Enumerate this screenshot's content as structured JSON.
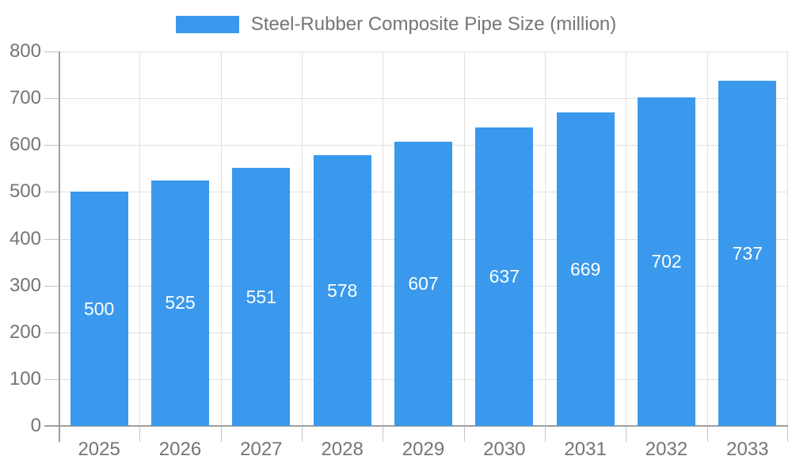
{
  "legend": {
    "label": "Steel-Rubber Composite Pipe Size (million)"
  },
  "chart_data": {
    "type": "bar",
    "title": "Steel-Rubber Composite Pipe Size (million)",
    "xlabel": "",
    "ylabel": "",
    "categories": [
      "2025",
      "2026",
      "2027",
      "2028",
      "2029",
      "2030",
      "2031",
      "2032",
      "2033"
    ],
    "values": [
      500,
      525,
      551,
      578,
      607,
      637,
      669,
      702,
      737
    ],
    "ylim": [
      0,
      800
    ],
    "ytick_step": 100,
    "ytick_labels": [
      "0",
      "100",
      "200",
      "300",
      "400",
      "500",
      "600",
      "700",
      "800"
    ],
    "grid": true,
    "legend_position": "top",
    "bar_labels_inside": true
  },
  "colors": {
    "bar": "#3A99EC",
    "bar_label": "#FFFFFF",
    "axis_line": "#9E9E9E",
    "gridline": "#E0E0E0",
    "tick": "#C4C4C4",
    "axis_text": "#757575",
    "background": "#FFFFFF"
  }
}
